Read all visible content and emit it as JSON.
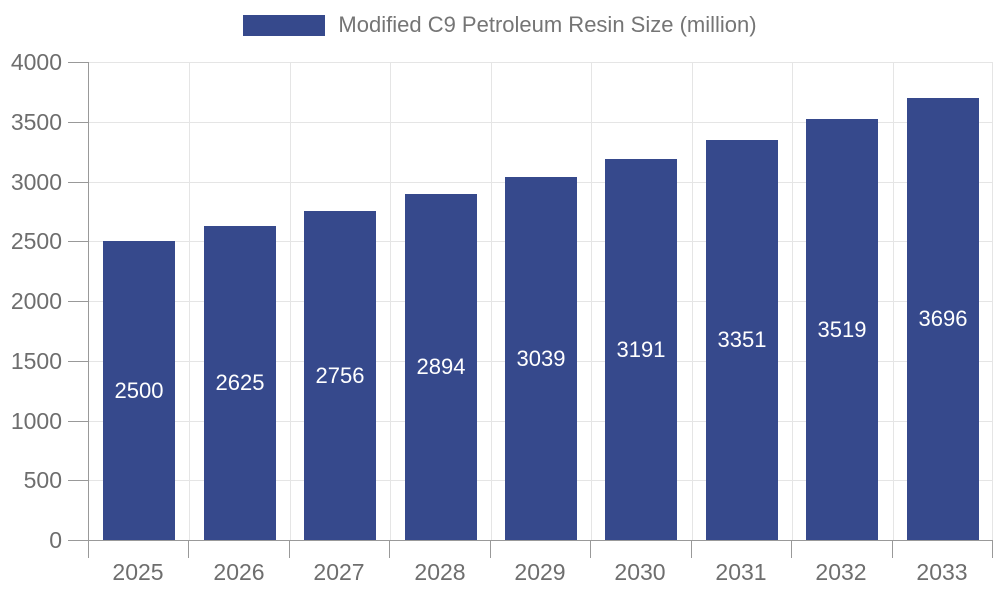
{
  "chart_data": {
    "type": "bar",
    "series_name": "Modified C9 Petroleum Resin Size (million)",
    "categories": [
      "2025",
      "2026",
      "2027",
      "2028",
      "2029",
      "2030",
      "2031",
      "2032",
      "2033"
    ],
    "values": [
      2500,
      2625,
      2756,
      2894,
      3039,
      3191,
      3351,
      3519,
      3696
    ],
    "title": "",
    "xlabel": "",
    "ylabel": "",
    "ylim": [
      0,
      4000
    ],
    "ytick_step": 500,
    "grid": true,
    "legend_position": "top-center",
    "bar_labels_visible": true,
    "colors": {
      "bar": "#36498c",
      "gridline": "#e5e5e5",
      "axis": "#999999",
      "axis_label": "#6e6e6e",
      "legend_text": "#757575",
      "bar_label": "#ffffff",
      "background": "#ffffff"
    }
  }
}
